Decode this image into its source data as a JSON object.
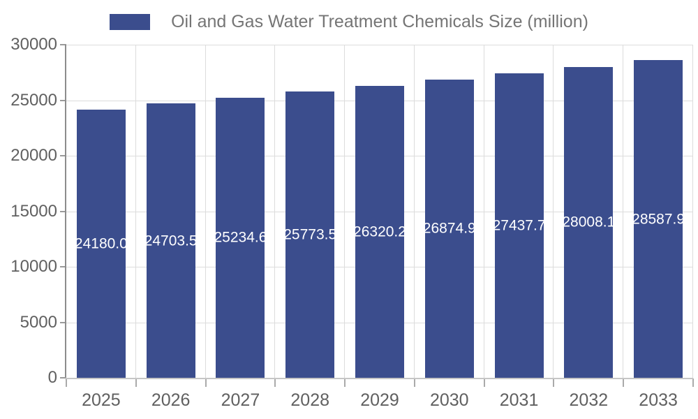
{
  "legend": {
    "label": "Oil and Gas Water Treatment Chemicals Size (million)",
    "swatch_color": "#3b4d8d"
  },
  "chart_data": {
    "type": "bar",
    "title": "Oil and Gas Water Treatment Chemicals Size (million)",
    "categories": [
      "2025",
      "2026",
      "2027",
      "2028",
      "2029",
      "2030",
      "2031",
      "2032",
      "2033"
    ],
    "values": [
      24180.0,
      24703.5,
      25234.6,
      25773.5,
      26320.2,
      26874.9,
      27437.7,
      28008.1,
      28587.9
    ],
    "bar_labels": [
      "24180.0",
      "24703.5",
      "25234.6",
      "25773.5",
      "26320.2",
      "26874.9",
      "27437.7",
      "28008.1",
      "28587.9"
    ],
    "xlabel": "",
    "ylabel": "",
    "ylim": [
      0,
      30000
    ],
    "yticks": [
      0,
      5000,
      10000,
      15000,
      20000,
      25000,
      30000
    ],
    "grid": true,
    "legend_position": "top",
    "bar_color": "#3b4d8d",
    "value_label_color": "#ffffff"
  },
  "colors": {
    "background": "#ffffff",
    "gridline": "#dcdcdc",
    "y_axis_line": "#8c8c8c",
    "x_axis_line": "#c6c6c6",
    "tick": "#9a9a9a",
    "axis_text": "#606060",
    "legend_text": "#757575"
  }
}
